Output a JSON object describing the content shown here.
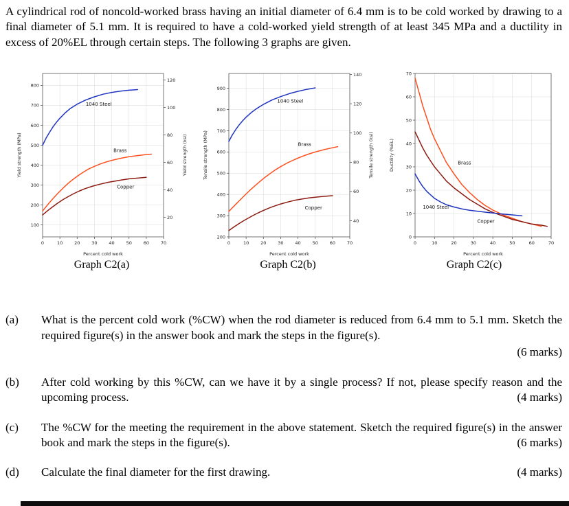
{
  "intro": {
    "text": "A cylindrical rod of noncold-worked brass having an initial diameter of 6.4 mm is to be cold worked by drawing to a final diameter of 5.1 mm. It is required to have a cold-worked yield strength of at least 345 MPa and a ductility in excess of 20%EL through certain steps. The following 3 graphs are given."
  },
  "questions": [
    {
      "label": "(a)",
      "text": "What is the percent cold work (%CW) when the rod diameter is reduced from 6.4 mm to 5.1 mm. Sketch the required figure(s) in the answer book and mark the steps in the figure(s).",
      "marks": "(6 marks)"
    },
    {
      "label": "(b)",
      "text": "After cold working by this %CW, can we have it by a single process? If not, please specify reason and the upcoming process.",
      "marks": "(4 marks)"
    },
    {
      "label": "(c)",
      "text": "The %CW for the meeting the requirement in the above statement. Sketch the required figure(s) in the answer book and mark the steps in the figure(s).",
      "marks": "(6 marks)"
    },
    {
      "label": "(d)",
      "text": "Calculate the final diameter for the first drawing.",
      "marks": "(4 marks)"
    }
  ],
  "chart_data": [
    {
      "type": "line",
      "title": "Graph C2(a)",
      "xlabel": "Percent cold work",
      "ylabel": "Yield strength (MPa)",
      "ylabel_right": "Yield strength (ksi)",
      "xlim": [
        0,
        70
      ],
      "xticks": [
        0,
        10,
        20,
        30,
        40,
        50,
        60,
        70
      ],
      "ylim": [
        40,
        860
      ],
      "yticks": [
        100,
        200,
        300,
        400,
        500,
        600,
        700,
        800
      ],
      "y2ticks": [
        20,
        40,
        60,
        80,
        100,
        120
      ],
      "y2_factor": 6.895,
      "grid": true,
      "series": [
        {
          "name": "1040 Steel",
          "color": "#1e34c0",
          "label_at": [
            25,
            698
          ],
          "points": [
            [
              0,
              500
            ],
            [
              2,
              535
            ],
            [
              4,
              565
            ],
            [
              6,
              592
            ],
            [
              8,
              615
            ],
            [
              10,
              635
            ],
            [
              13,
              662
            ],
            [
              16,
              684
            ],
            [
              20,
              706
            ],
            [
              25,
              727
            ],
            [
              30,
              743
            ],
            [
              35,
              756
            ],
            [
              40,
              765
            ],
            [
              45,
              771
            ],
            [
              50,
              776
            ],
            [
              55,
              779
            ]
          ]
        },
        {
          "name": "Brass",
          "color": "#fd4f1e",
          "label_at": [
            41,
            465
          ],
          "points": [
            [
              0,
              170
            ],
            [
              3,
              202
            ],
            [
              6,
              232
            ],
            [
              9,
              260
            ],
            [
              12,
              286
            ],
            [
              15,
              310
            ],
            [
              18,
              331
            ],
            [
              21,
              350
            ],
            [
              24,
              367
            ],
            [
              27,
              382
            ],
            [
              30,
              394
            ],
            [
              34,
              408
            ],
            [
              38,
              419
            ],
            [
              42,
              428
            ],
            [
              46,
              436
            ],
            [
              50,
              442
            ],
            [
              55,
              448
            ],
            [
              60,
              453
            ],
            [
              63,
              455
            ]
          ]
        },
        {
          "name": "Copper",
          "color": "#8c1a10",
          "label_at": [
            43,
            283
          ],
          "points": [
            [
              0,
              150
            ],
            [
              3,
              172
            ],
            [
              6,
              192
            ],
            [
              9,
              211
            ],
            [
              12,
              228
            ],
            [
              15,
              243
            ],
            [
              18,
              257
            ],
            [
              21,
              269
            ],
            [
              24,
              280
            ],
            [
              27,
              289
            ],
            [
              30,
              297
            ],
            [
              34,
              306
            ],
            [
              38,
              314
            ],
            [
              42,
              320
            ],
            [
              46,
              326
            ],
            [
              50,
              331
            ],
            [
              55,
              335
            ],
            [
              60,
              339
            ]
          ]
        }
      ]
    },
    {
      "type": "line",
      "title": "Graph C2(b)",
      "xlabel": "Percent cold work",
      "ylabel": "Tensile strength (MPa)",
      "ylabel_right": "Tensile strength (ksi)",
      "xlim": [
        0,
        70
      ],
      "xticks": [
        0,
        10,
        20,
        30,
        40,
        50,
        60,
        70
      ],
      "ylim": [
        200,
        970
      ],
      "yticks": [
        200,
        300,
        400,
        500,
        600,
        700,
        800,
        900
      ],
      "y2ticks": [
        40,
        60,
        80,
        100,
        120,
        140
      ],
      "y2_factor": 6.895,
      "grid": true,
      "series": [
        {
          "name": "1040 Steel",
          "color": "#1e34c0",
          "label_at": [
            28,
            832
          ],
          "points": [
            [
              0,
              650
            ],
            [
              2,
              680
            ],
            [
              4,
              706
            ],
            [
              6,
              728
            ],
            [
              8,
              747
            ],
            [
              10,
              764
            ],
            [
              13,
              786
            ],
            [
              16,
              804
            ],
            [
              20,
              824
            ],
            [
              25,
              845
            ],
            [
              30,
              861
            ],
            [
              35,
              875
            ],
            [
              40,
              886
            ],
            [
              45,
              895
            ],
            [
              50,
              902
            ]
          ]
        },
        {
          "name": "Brass",
          "color": "#fd4f1e",
          "label_at": [
            40,
            628
          ],
          "points": [
            [
              0,
              320
            ],
            [
              3,
              345
            ],
            [
              6,
              370
            ],
            [
              9,
              394
            ],
            [
              12,
              418
            ],
            [
              15,
              440
            ],
            [
              18,
              461
            ],
            [
              21,
              481
            ],
            [
              24,
              499
            ],
            [
              27,
              516
            ],
            [
              30,
              531
            ],
            [
              34,
              549
            ],
            [
              38,
              564
            ],
            [
              42,
              578
            ],
            [
              46,
              590
            ],
            [
              50,
              600
            ],
            [
              55,
              611
            ],
            [
              60,
              620
            ],
            [
              63,
              625
            ]
          ]
        },
        {
          "name": "Copper",
          "color": "#8c1a10",
          "label_at": [
            44,
            330
          ],
          "points": [
            [
              0,
              230
            ],
            [
              3,
              247
            ],
            [
              6,
              263
            ],
            [
              9,
              278
            ],
            [
              12,
              292
            ],
            [
              15,
              305
            ],
            [
              18,
              317
            ],
            [
              21,
              328
            ],
            [
              24,
              338
            ],
            [
              27,
              347
            ],
            [
              30,
              355
            ],
            [
              34,
              364
            ],
            [
              38,
              372
            ],
            [
              42,
              378
            ],
            [
              46,
              383
            ],
            [
              50,
              387
            ],
            [
              55,
              391
            ],
            [
              60,
              394
            ]
          ]
        }
      ]
    },
    {
      "type": "line",
      "title": "Graph C2(c)",
      "xlabel": "Percent cold work",
      "ylabel": "Ductility (%EL)",
      "ylabel_right": null,
      "xlim": [
        0,
        70
      ],
      "xticks": [
        0,
        10,
        20,
        30,
        40,
        50,
        60,
        70
      ],
      "ylim": [
        0,
        70
      ],
      "yticks": [
        0,
        10,
        20,
        30,
        40,
        50,
        60,
        70
      ],
      "grid": true,
      "series": [
        {
          "name": "Brass",
          "color": "#fd4f1e",
          "label_at": [
            22,
            31
          ],
          "points": [
            [
              0,
              68
            ],
            [
              2,
              62
            ],
            [
              4,
              56
            ],
            [
              6,
              51
            ],
            [
              8,
              46
            ],
            [
              10,
              42
            ],
            [
              13,
              37
            ],
            [
              16,
              32
            ],
            [
              20,
              27
            ],
            [
              24,
              22.5
            ],
            [
              28,
              19
            ],
            [
              32,
              16
            ],
            [
              36,
              13.5
            ],
            [
              40,
              11.5
            ],
            [
              45,
              9.5
            ],
            [
              50,
              8
            ],
            [
              55,
              6.5
            ],
            [
              60,
              5.5
            ],
            [
              65,
              4.5
            ]
          ]
        },
        {
          "name": "Copper",
          "color": "#8c1a10",
          "label_at": [
            32,
            6
          ],
          "points": [
            [
              0,
              45
            ],
            [
              2,
              41.5
            ],
            [
              4,
              38
            ],
            [
              6,
              35
            ],
            [
              8,
              32.5
            ],
            [
              10,
              30
            ],
            [
              13,
              27
            ],
            [
              16,
              24
            ],
            [
              20,
              21
            ],
            [
              24,
              18.5
            ],
            [
              28,
              16
            ],
            [
              32,
              14
            ],
            [
              36,
              12
            ],
            [
              40,
              10.5
            ],
            [
              45,
              9
            ],
            [
              50,
              7.5
            ],
            [
              55,
              6.5
            ],
            [
              60,
              5.5
            ],
            [
              65,
              5
            ],
            [
              68,
              4.5
            ]
          ]
        },
        {
          "name": "1040 Steel",
          "color": "#1e34c0",
          "label_at": [
            4,
            12
          ],
          "points": [
            [
              0,
              27
            ],
            [
              2,
              24
            ],
            [
              4,
              21.5
            ],
            [
              6,
              19.5
            ],
            [
              8,
              18
            ],
            [
              10,
              16.5
            ],
            [
              13,
              15
            ],
            [
              16,
              13.8
            ],
            [
              20,
              12.8
            ],
            [
              24,
              12
            ],
            [
              28,
              11.4
            ],
            [
              32,
              11
            ],
            [
              36,
              10.6
            ],
            [
              40,
              10.2
            ],
            [
              45,
              9.8
            ],
            [
              50,
              9.4
            ],
            [
              55,
              9
            ]
          ]
        }
      ]
    }
  ]
}
